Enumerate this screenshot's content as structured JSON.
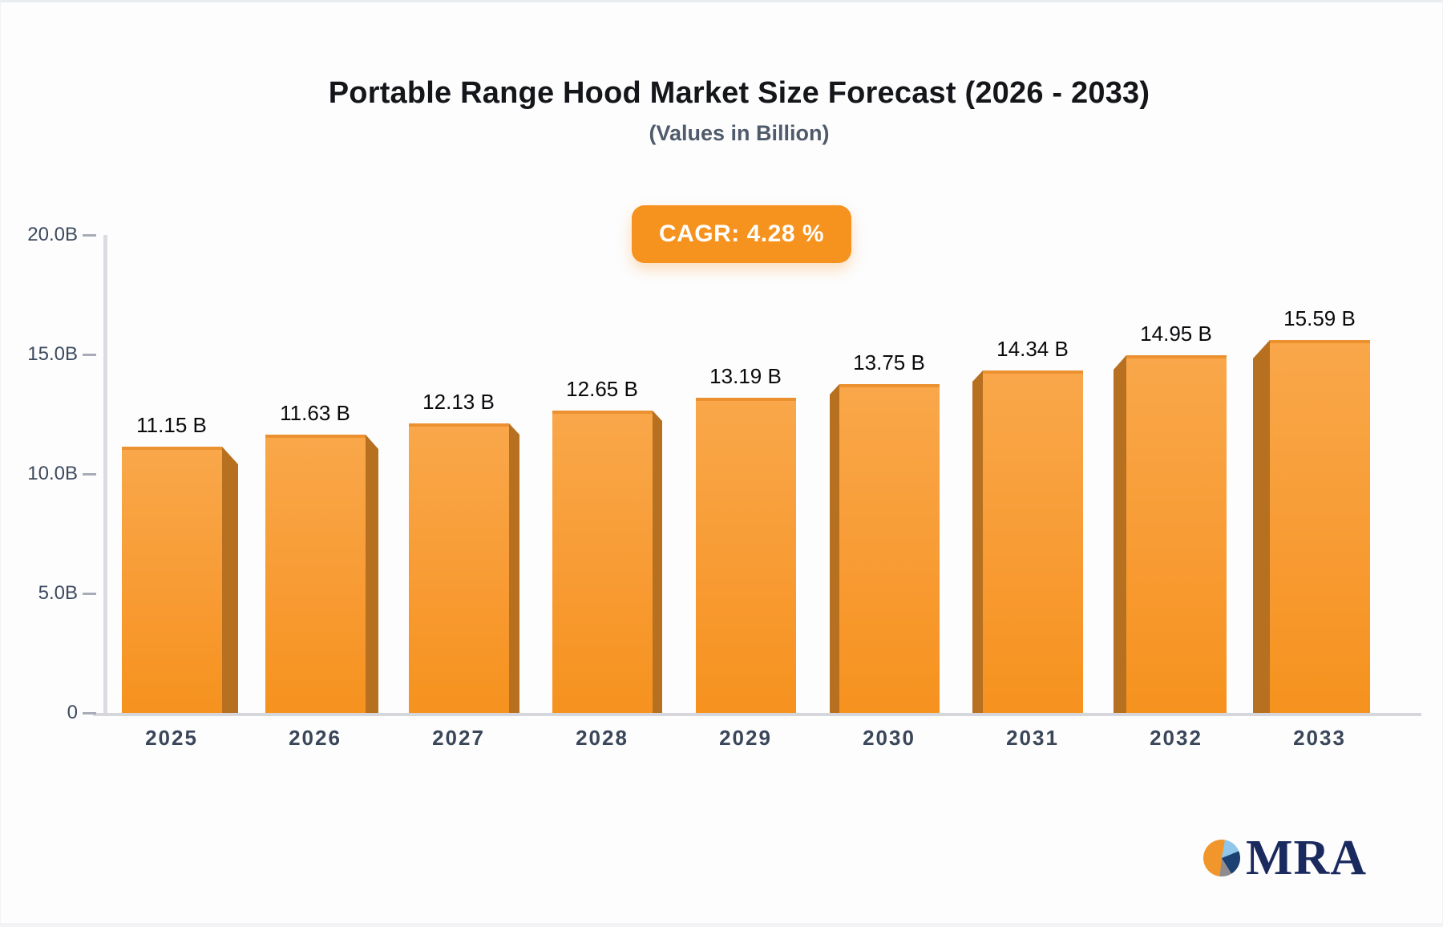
{
  "header": {
    "title": "Portable Range Hood Market Size Forecast (2026 - 2033)",
    "subtitle": "(Values in Billion)",
    "cagr_label": "CAGR: 4.28 %"
  },
  "chart_data": {
    "type": "bar",
    "title": "Portable Range Hood Market Size Forecast (2026 - 2033)",
    "subtitle": "(Values in Billion)",
    "annotation": "CAGR: 4.28 %",
    "categories": [
      "2025",
      "2026",
      "2027",
      "2028",
      "2029",
      "2030",
      "2031",
      "2032",
      "2033"
    ],
    "values": [
      11.15,
      11.63,
      12.13,
      12.65,
      13.19,
      13.75,
      14.34,
      14.95,
      15.59
    ],
    "value_labels": [
      "11.15 B",
      "11.63 B",
      "12.13 B",
      "12.65 B",
      "13.19 B",
      "13.75 B",
      "14.34 B",
      "14.95 B",
      "15.59 B"
    ],
    "xlabel": "",
    "ylabel": "",
    "y_ticks": [
      0,
      5,
      10,
      15,
      20
    ],
    "y_tick_labels": [
      "0",
      "5.0B",
      "10.0B",
      "15.0B",
      "20.0B"
    ],
    "ylim": [
      0,
      20
    ],
    "grid": false,
    "legend": false,
    "unit": "Billion",
    "colors": {
      "bar_top": "#F9A74A",
      "bar_bottom": "#F6921E",
      "bar_side": "#B77020",
      "badge_bg": "#F6921E",
      "axis": "#D6D7DC"
    }
  },
  "logo": {
    "text": "MRA",
    "icon": "pie-chart-icon",
    "colors": {
      "orange": "#F0962B",
      "light_blue": "#8FC6E9",
      "navy": "#1D4072",
      "gray": "#8E8C90"
    }
  }
}
